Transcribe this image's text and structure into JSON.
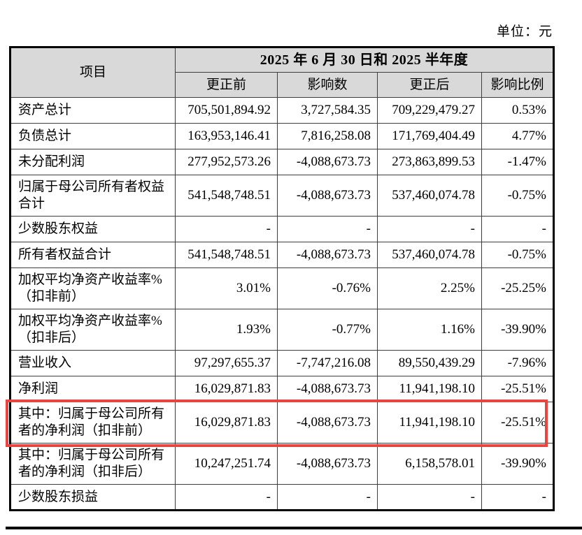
{
  "page": {
    "unit_label": "单位：元"
  },
  "table": {
    "header": {
      "item_col": "项目",
      "period": "2025 年 6 月 30 日和 2025 半年度",
      "sub_columns": [
        "更正前",
        "影响数",
        "更正后",
        "影响比例"
      ]
    },
    "rows": [
      {
        "label": "资产总计",
        "before": "705,501,894.92",
        "impact": "3,727,584.35",
        "after": "709,229,479.27",
        "ratio": "0.53%",
        "highlighted": false
      },
      {
        "label": "负债总计",
        "before": "163,953,146.41",
        "impact": "7,816,258.08",
        "after": "171,769,404.49",
        "ratio": "4.77%",
        "highlighted": false
      },
      {
        "label": "未分配利润",
        "before": "277,952,573.26",
        "impact": "-4,088,673.73",
        "after": "273,863,899.53",
        "ratio": "-1.47%",
        "highlighted": false
      },
      {
        "label": "归属于母公司所有者权益合计",
        "before": "541,548,748.51",
        "impact": "-4,088,673.73",
        "after": "537,460,074.78",
        "ratio": "-0.75%",
        "highlighted": false
      },
      {
        "label": "少数股东权益",
        "before": "-",
        "impact": "-",
        "after": "-",
        "ratio": "-",
        "highlighted": false
      },
      {
        "label": "所有者权益合计",
        "before": "541,548,748.51",
        "impact": "-4,088,673.73",
        "after": "537,460,074.78",
        "ratio": "-0.75%",
        "highlighted": false
      },
      {
        "label": "加权平均净资产收益率%（扣非前）",
        "before": "3.01%",
        "impact": "-0.76%",
        "after": "2.25%",
        "ratio": "-25.25%",
        "highlighted": false
      },
      {
        "label": "加权平均净资产收益率%（扣非后）",
        "before": "1.93%",
        "impact": "-0.77%",
        "after": "1.16%",
        "ratio": "-39.90%",
        "highlighted": false
      },
      {
        "label": "营业收入",
        "before": "97,297,655.37",
        "impact": "-7,747,216.08",
        "after": "89,550,439.29",
        "ratio": "-7.96%",
        "highlighted": false
      },
      {
        "label": "净利润",
        "before": "16,029,871.83",
        "impact": "-4,088,673.73",
        "after": "11,941,198.10",
        "ratio": "-25.51%",
        "highlighted": false
      },
      {
        "label": "其中：归属于母公司所有者的净利润（扣非前）",
        "before": "16,029,871.83",
        "impact": "-4,088,673.73",
        "after": "11,941,198.10",
        "ratio": "-25.51%",
        "highlighted": true
      },
      {
        "label": "其中：归属于母公司所有者的净利润（扣非后）",
        "before": "10,247,251.74",
        "impact": "-4,088,673.73",
        "after": "6,158,578.01",
        "ratio": "-39.90%",
        "highlighted": false
      },
      {
        "label": "少数股东损益",
        "before": "-",
        "impact": "-",
        "after": "-",
        "ratio": "-",
        "highlighted": false
      }
    ]
  },
  "colors": {
    "header_bg": "#d9d9d9",
    "highlight_border": "#e84440",
    "grid_line": "#3d3d3d",
    "outer_border": "#000000"
  }
}
